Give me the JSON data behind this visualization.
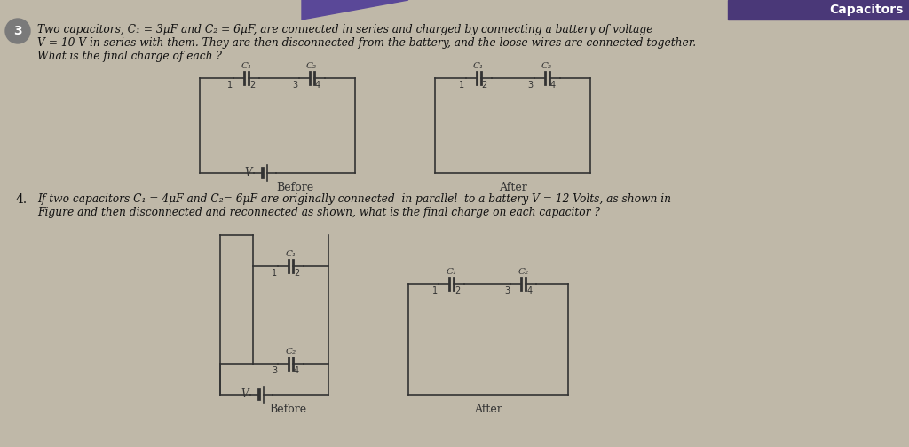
{
  "title": "Capacitors",
  "title_color": "#111111",
  "title_bg_color": "#5a4a8a",
  "bg_color": "#bfb8a8",
  "text_color": "#111111",
  "circuit_color": "#333333",
  "problem3_text_line1": "Two capacitors, C₁ = 3μF and C₂ = 6μF, are connected in series and charged by connecting a battery of voltage",
  "problem3_text_line2": "V = 10 V in series with them. They are then disconnected from the battery, and the loose wires are connected together.",
  "problem3_text_line3": "What is the final charge of each ?",
  "problem4_text_line1": "If two capacitors C₁ = 4μF and C₂= 6μF are originally connected  in parallel  to a battery V = 12 Volts, as shown in",
  "problem4_text_line2": "Figure and then disconnected and reconnected as shown, what is the final charge on each capacitor ?",
  "before_label": "Before",
  "after_label": "After",
  "lw": 1.2
}
